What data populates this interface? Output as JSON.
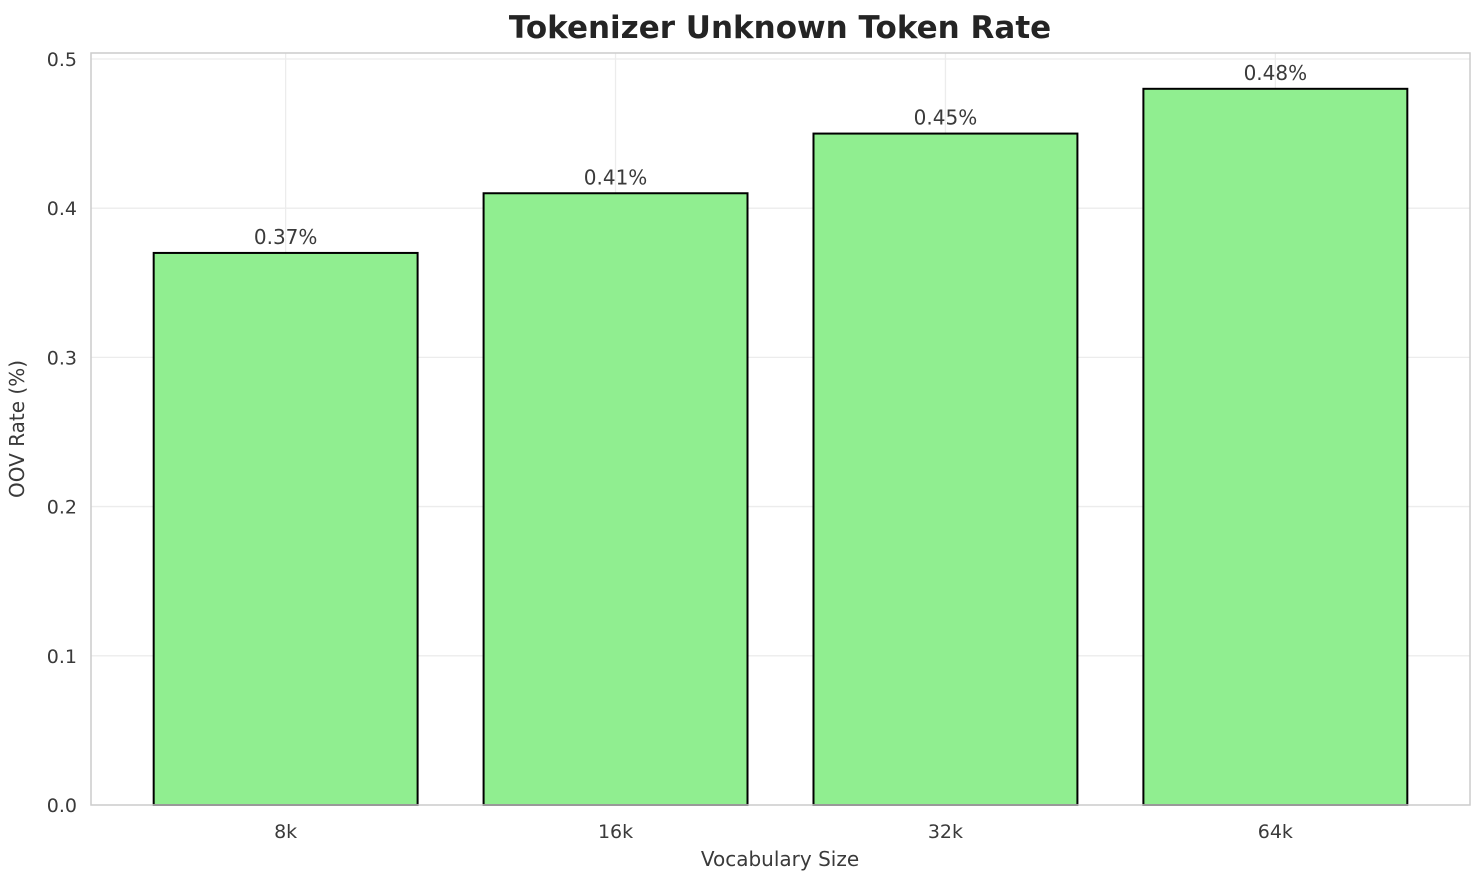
{
  "chart_data": {
    "type": "bar",
    "title": "Tokenizer Unknown Token Rate",
    "xlabel": "Vocabulary Size",
    "ylabel": "OOV Rate (%)",
    "categories": [
      "8k",
      "16k",
      "32k",
      "64k"
    ],
    "values": [
      0.37,
      0.41,
      0.45,
      0.48
    ],
    "bar_labels": [
      "0.37%",
      "0.41%",
      "0.45%",
      "0.48%"
    ],
    "ylim": [
      0,
      0.504
    ],
    "ytick_labels": [
      "0.0",
      "0.1",
      "0.2",
      "0.3",
      "0.4",
      "0.5"
    ],
    "ytick_values": [
      0.0,
      0.1,
      0.2,
      0.3,
      0.4,
      0.5
    ],
    "grid": true,
    "legend_position": "none",
    "bar_color": "#90EE90",
    "bar_edge_color": "#000000",
    "grid_color": "#ececec",
    "spine_color": "#cccccc",
    "text_color": "#3a3a3a",
    "title_color": "#242424"
  }
}
